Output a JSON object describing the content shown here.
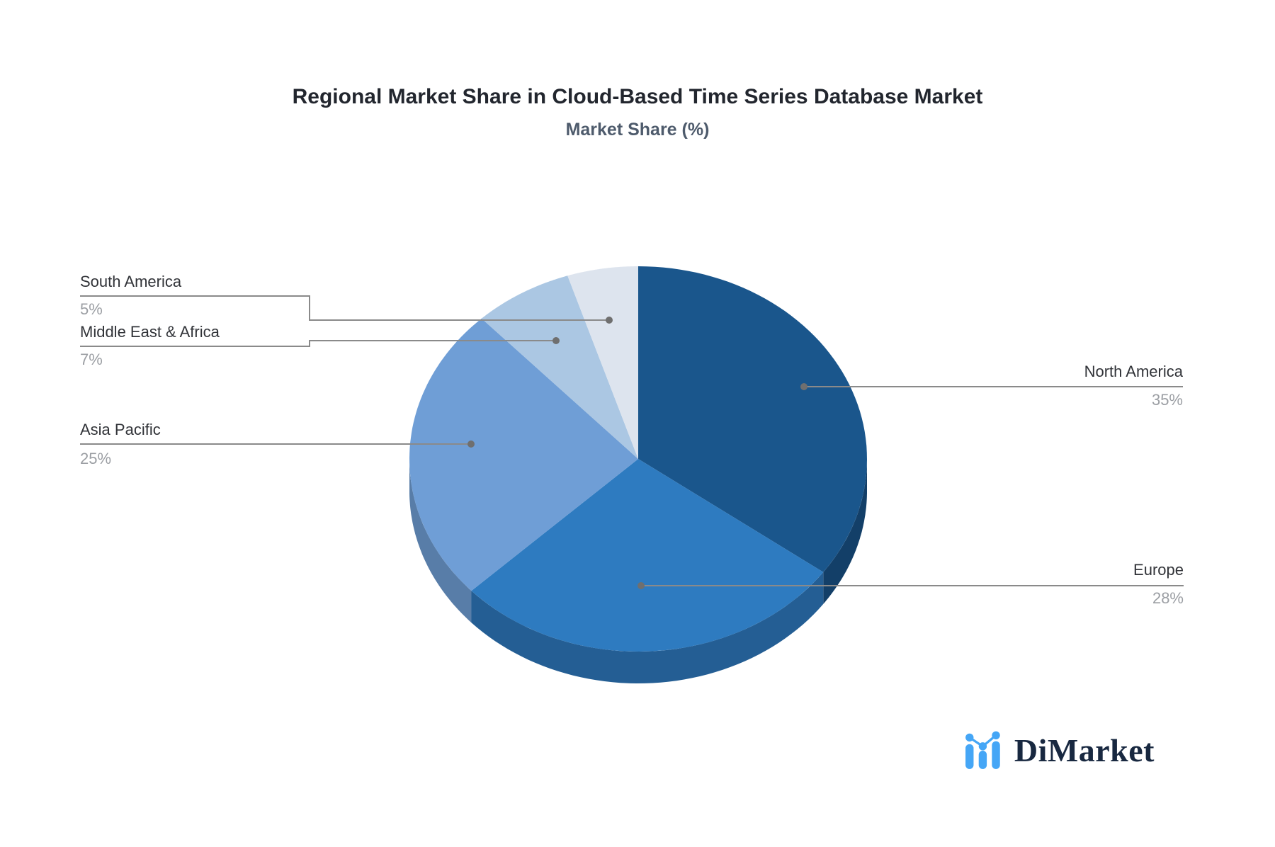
{
  "header": {
    "title": "Regional Market Share in Cloud-Based Time Series Database Market",
    "subtitle": "Market Share (%)"
  },
  "chart_data": {
    "type": "pie",
    "title": "Regional Market Share in Cloud-Based Time Series Database Market",
    "subtitle": "Market Share (%)",
    "unit": "%",
    "effect": "3d",
    "start_angle_deg": 0,
    "direction": "clockwise",
    "legend": "none",
    "label_style": "callouts-with-leader-lines",
    "labels": [
      "North America",
      "Europe",
      "Asia Pacific",
      "Middle East & Africa",
      "South America"
    ],
    "values": [
      35,
      28,
      25,
      7,
      5
    ],
    "colors": [
      "#1a568c",
      "#2e7bc0",
      "#6f9ed6",
      "#abc7e3",
      "#dde4ee"
    ],
    "side_colors": [
      "#133f68",
      "#245e94",
      "#587da8",
      "#8aa6c2",
      "#b9c3d2"
    ]
  },
  "callouts": [
    {
      "name": "North America",
      "value_label": "35%",
      "side": "right"
    },
    {
      "name": "Europe",
      "value_label": "28%",
      "side": "right"
    },
    {
      "name": "Asia Pacific",
      "value_label": "25%",
      "side": "left"
    },
    {
      "name": "Middle East & Africa",
      "value_label": "7%",
      "side": "left"
    },
    {
      "name": "South America",
      "value_label": "5%",
      "side": "left"
    }
  ],
  "style": {
    "title_color": "#22262e",
    "subtitle_color": "#4e5b6c",
    "label_color": "#313338",
    "value_color": "#9b9ea3",
    "leader_line_color": "#8a8a8a",
    "leader_dot_color": "#6f6f6f",
    "background": "#ffffff"
  },
  "logo": {
    "text": "DiMarket",
    "icon": "bar-line-chart-icon",
    "icon_color": "#45a6f6",
    "text_color": "#182840"
  }
}
